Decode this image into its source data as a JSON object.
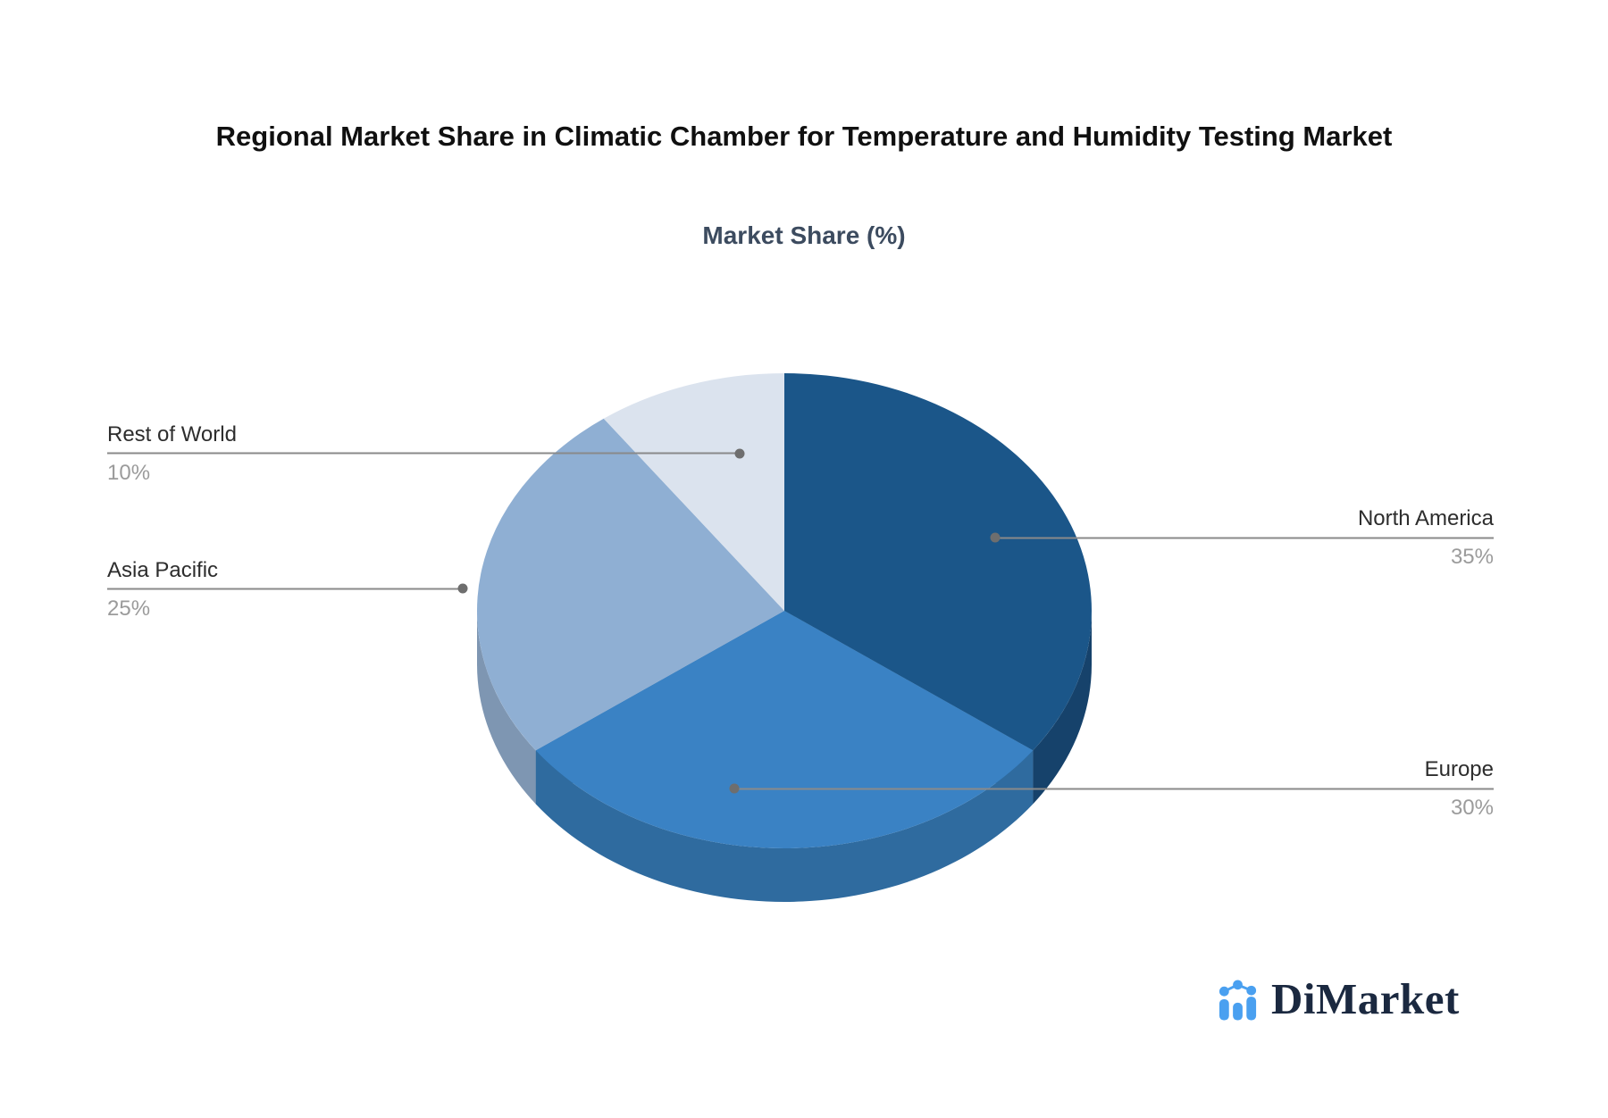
{
  "header": {
    "title": "Regional Market Share in Climatic Chamber for Temperature and Humidity Testing Market",
    "subtitle": "Market Share (%)"
  },
  "chart_data": {
    "type": "pie",
    "title": "Regional Market Share in Climatic Chamber for Temperature and Humidity Testing Market",
    "subtitle": "Market Share (%)",
    "unit": "%",
    "style": "3d-pie",
    "start_angle_deg": 0,
    "direction": "clockwise",
    "legend": "none",
    "labels_visible": true,
    "slices": [
      {
        "label": "North America",
        "value": 35,
        "display": "35%",
        "color": "#1b5689",
        "rim_color": "#16426b"
      },
      {
        "label": "Europe",
        "value": 30,
        "display": "30%",
        "color": "#3a82c4",
        "rim_color": "#2f6b9f",
        "cut_color": "#27608f"
      },
      {
        "label": "Asia Pacific",
        "value": 25,
        "display": "25%",
        "color": "#8fafd3",
        "rim_color": "#7e96b2"
      },
      {
        "label": "Rest of World",
        "value": 10,
        "display": "10%",
        "color": "#dbe3ee",
        "rim_color": "#b9c6da"
      }
    ]
  },
  "branding": {
    "name": "DiMarket",
    "icon": "bar-chart-logo-icon",
    "icon_color": "#4aa0f0",
    "text_color": "#1b2940"
  },
  "colors": {
    "title": "#101010",
    "subtitle": "#3c4b5f",
    "label_text": "#2d2d2d",
    "value_text": "#9b9b9b",
    "connector_line": "#8a8a8a",
    "connector_dot": "#6e6e6e",
    "background": "#ffffff"
  }
}
